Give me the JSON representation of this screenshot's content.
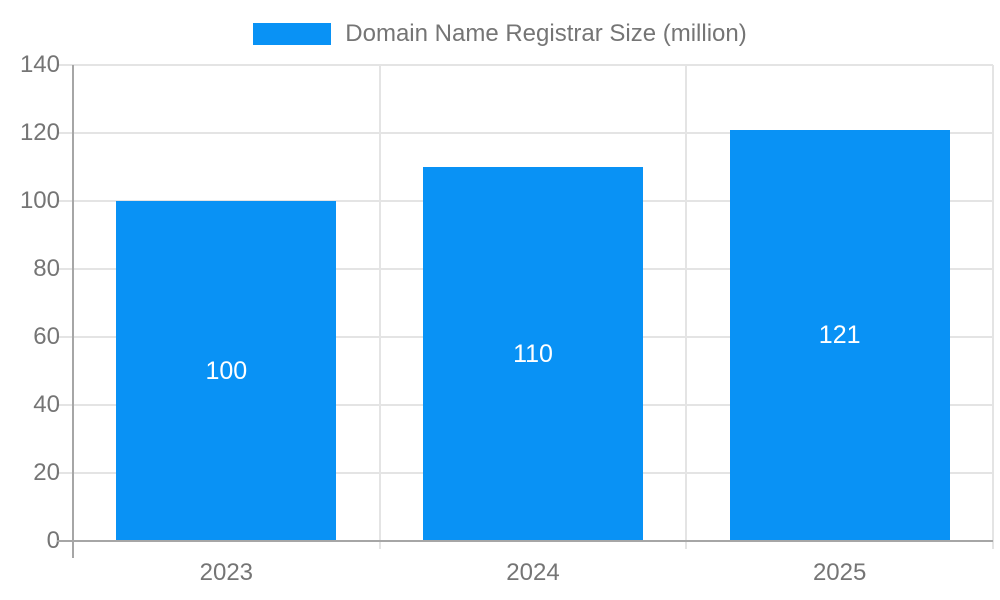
{
  "chart_data": {
    "type": "bar",
    "categories": [
      "2023",
      "2024",
      "2025"
    ],
    "values": [
      100,
      110,
      121
    ],
    "series_name": "Domain Name Registrar Size (million)",
    "title": "",
    "xlabel": "",
    "ylabel": "",
    "ylim": [
      0,
      140
    ],
    "yticks": [
      0,
      20,
      40,
      60,
      80,
      100,
      120,
      140
    ],
    "grid": true,
    "legend_position": "top-center",
    "bar_labels": [
      "100",
      "110",
      "121"
    ],
    "bar_label_position": "inside-center",
    "colors": {
      "bar": "#0992f5",
      "bar_label_text": "#ffffff",
      "axis_text": "#757575",
      "gridline": "#e4e4e4",
      "axis_line": "#a6a6a6"
    }
  },
  "legend": {
    "label": "Domain Name Registrar Size (million)"
  }
}
